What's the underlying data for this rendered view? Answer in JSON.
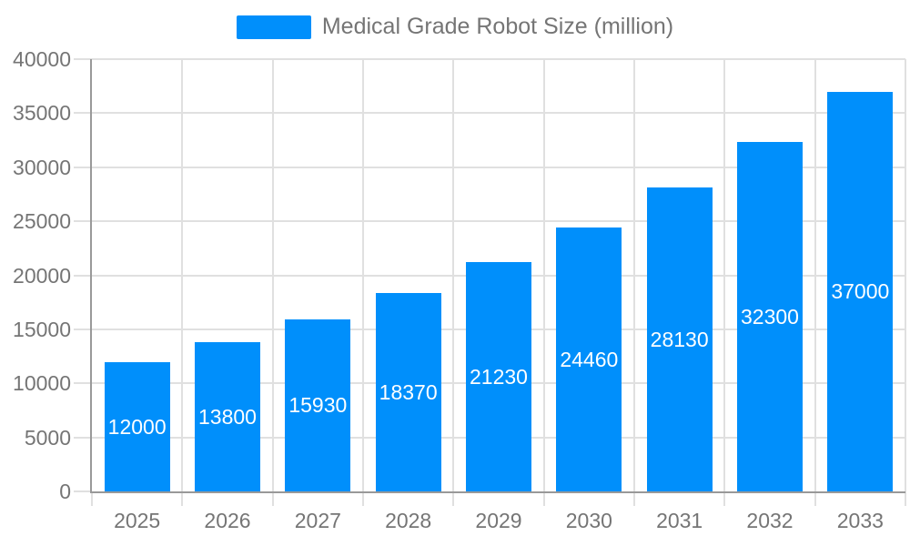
{
  "legend": {
    "items": [
      {
        "label": "Medical Grade Robot Size (million)",
        "color": "#008FFB"
      }
    ]
  },
  "chart_data": {
    "type": "bar",
    "title": "Medical Grade Robot Size (million)",
    "categories": [
      "2025",
      "2026",
      "2027",
      "2028",
      "2029",
      "2030",
      "2031",
      "2032",
      "2033"
    ],
    "series": [
      {
        "name": "Medical Grade Robot Size (million)",
        "values": [
          12000,
          13800,
          15930,
          18370,
          21230,
          24460,
          28130,
          32300,
          37000
        ]
      }
    ],
    "ylim": [
      0,
      40000
    ],
    "yticks": [
      0,
      5000,
      10000,
      15000,
      20000,
      25000,
      30000,
      35000,
      40000
    ],
    "xlabel": "",
    "ylabel": "",
    "grid": true,
    "legend_position": "top",
    "bar_labels_inside": true,
    "colors": {
      "bar": "#008FFB",
      "bar_label": "#FFFFFF",
      "axis_text": "#757575",
      "axis_line": "#999999",
      "grid_line": "#E0E0E0",
      "background": "#FFFFFF"
    }
  }
}
